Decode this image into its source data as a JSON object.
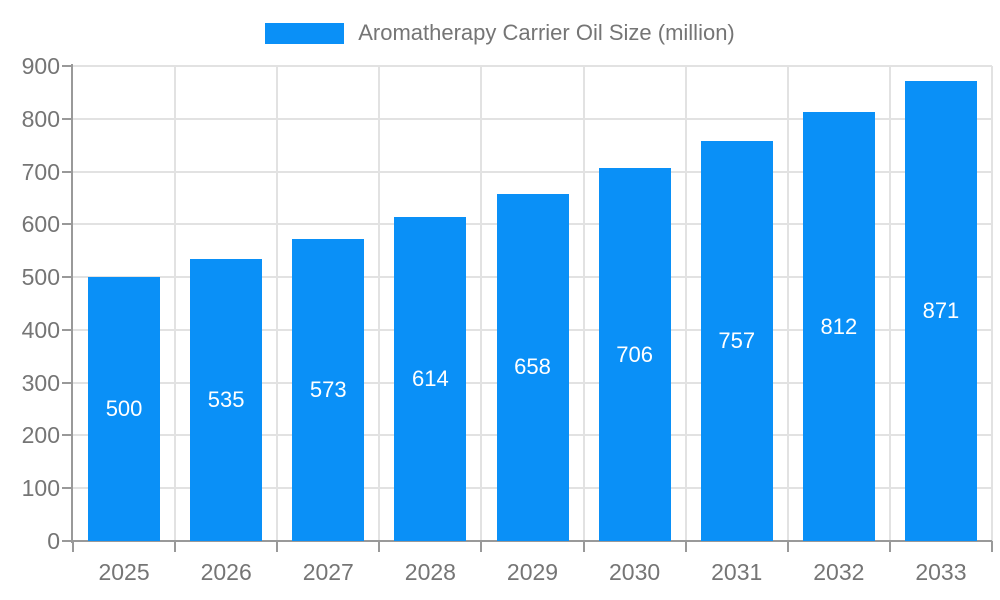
{
  "chart_data": {
    "type": "bar",
    "title": "Aromatherapy Carrier Oil Size (million)",
    "categories": [
      "2025",
      "2026",
      "2027",
      "2028",
      "2029",
      "2030",
      "2031",
      "2032",
      "2033"
    ],
    "values": [
      500,
      535,
      573,
      614,
      658,
      706,
      757,
      812,
      871
    ],
    "xlabel": "",
    "ylabel": "",
    "ylim": [
      0,
      900
    ],
    "ytick_step": 100,
    "yticks": [
      "0",
      "100",
      "200",
      "300",
      "400",
      "500",
      "600",
      "700",
      "800",
      "900"
    ],
    "grid": "horizontal and vertical light gridlines",
    "legend_position": "top-center",
    "value_labels": "white, centered inside bars",
    "colors": {
      "bar": "#0A90F7",
      "axis": "#999999",
      "grid": "#E2E2E2",
      "tick_text": "#757575",
      "value_label": "#FFFFFF",
      "background": "#FFFFFF"
    }
  }
}
